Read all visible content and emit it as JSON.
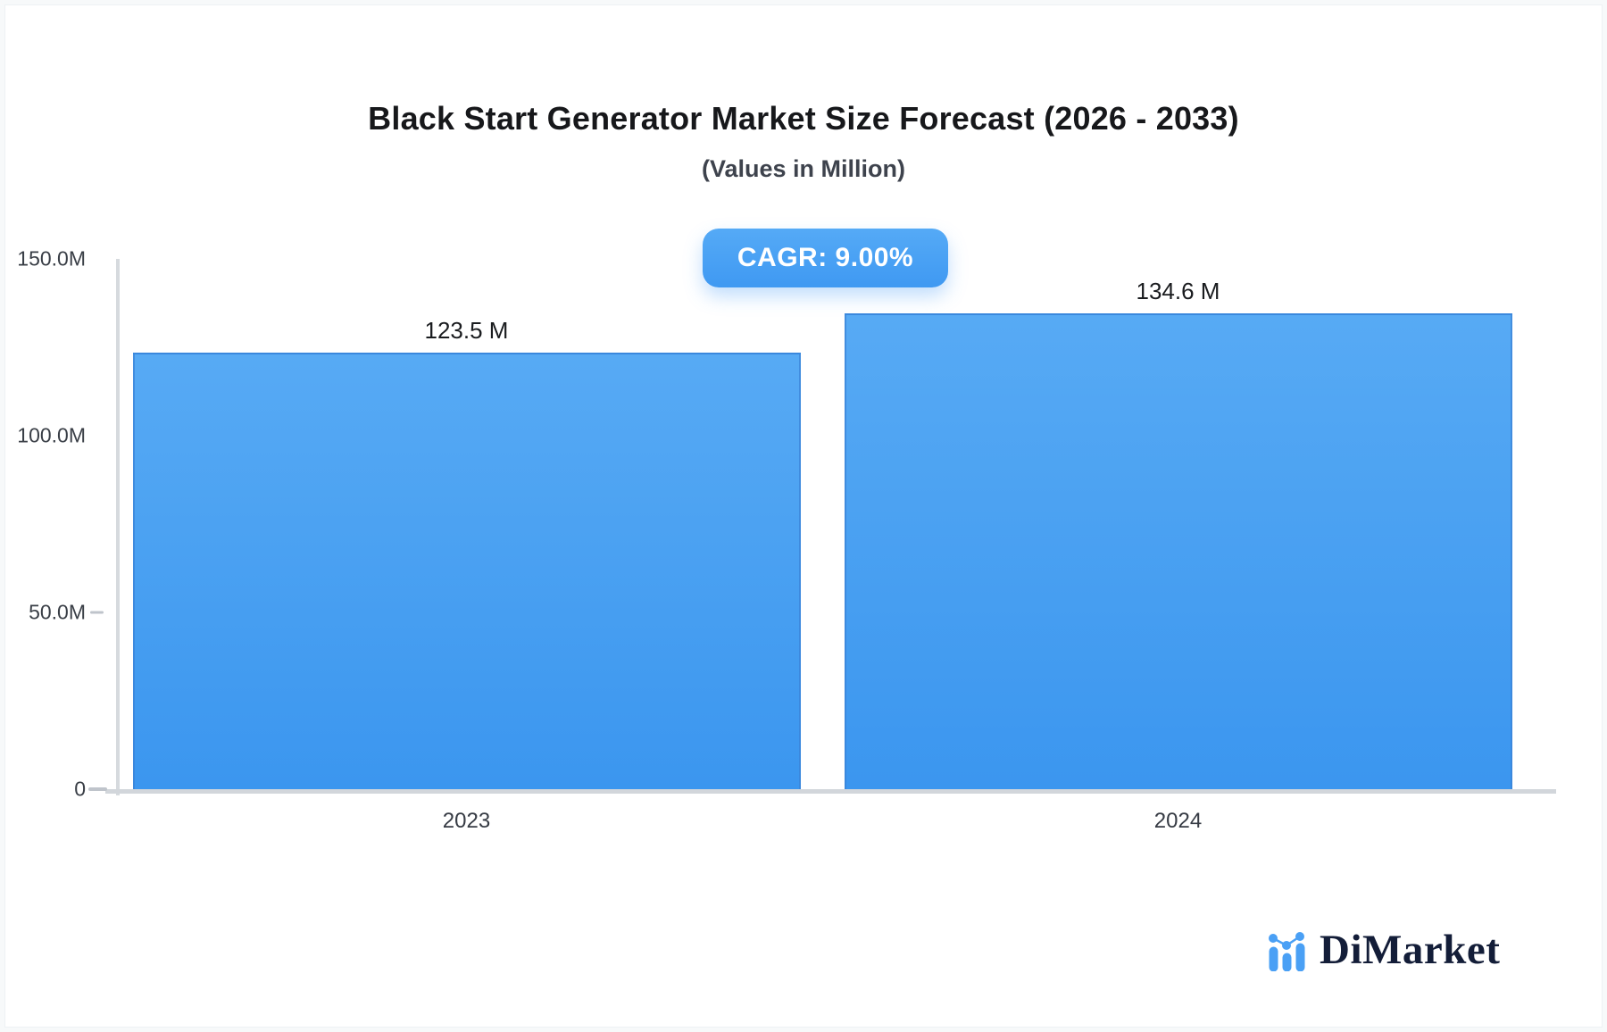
{
  "header": {
    "title": "Black Start Generator Market Size Forecast (2026 - 2033)",
    "subtitle": "(Values in Million)"
  },
  "badge": {
    "label": "CAGR: 9.00%",
    "bg_top": "#55aaf6",
    "bg_bottom": "#3f99f2",
    "text_color": "#ffffff"
  },
  "chart_data": {
    "type": "bar",
    "title": "Black Start Generator Market Size Forecast (2026 - 2033)",
    "subtitle": "(Values in Million)",
    "categories": [
      "2023",
      "2024"
    ],
    "values": [
      123.5,
      134.6
    ],
    "value_labels": [
      "123.5 M",
      "134.6 M"
    ],
    "cagr_percent": 9.0,
    "ylim": [
      0,
      150
    ],
    "yticks": [
      0,
      50,
      100,
      150
    ],
    "ytick_labels": [
      "0",
      "50.0M",
      "100.0M",
      "150.0M"
    ],
    "ytick_dash_at": [
      0,
      50
    ],
    "grid": false,
    "legend": false,
    "bar_gradient_top": "#57aaf4",
    "bar_gradient_bottom": "#3b96ef",
    "bar_border_color": "#3a81d6",
    "axis_color": "#d6dade"
  },
  "branding": {
    "logo_text": "DiMarket",
    "logo_icon": "bar-chart-logo-icon",
    "text_color": "#131d38",
    "icon_color": "#4aa0f5"
  }
}
